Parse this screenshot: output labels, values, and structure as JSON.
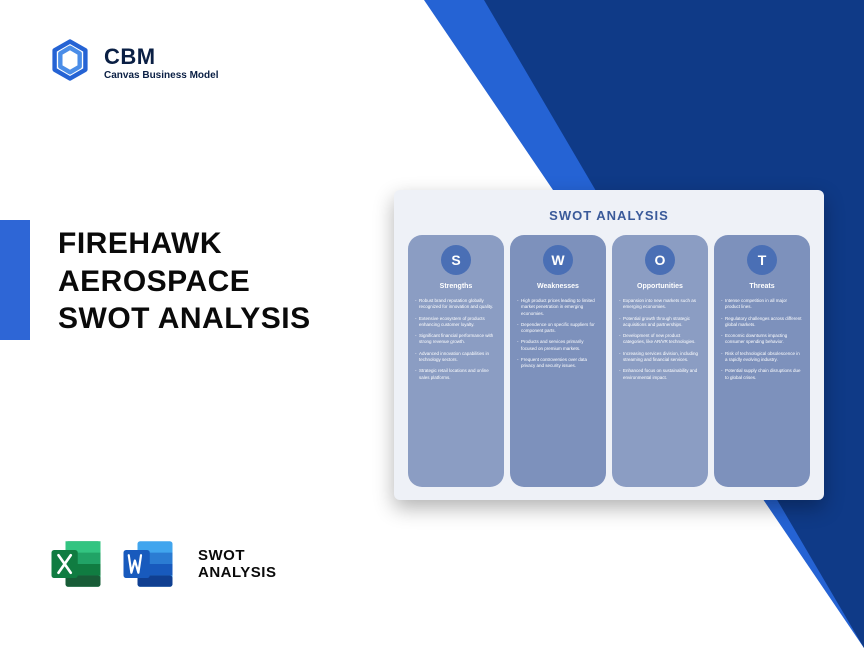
{
  "colors": {
    "bg_triangle_light": "#2563d4",
    "bg_triangle_dark": "#0f3a87",
    "side_bar": "#2e66d6",
    "panel_bg": "#eef1f7",
    "col_bg": "#8b9dc3",
    "col_bg_alt": "#7d91bc",
    "circle_bg": "#4a6fb5",
    "excel_dark": "#107c41",
    "excel_light": "#21a366",
    "word_dark": "#185abd",
    "word_light": "#41a5ee",
    "text_dark": "#0a1f44"
  },
  "logo": {
    "title": "CBM",
    "subtitle": "Canvas Business Model"
  },
  "title": {
    "line1": "FIREHAWK",
    "line2": "AEROSPACE",
    "line3": "SWOT ANALYSIS"
  },
  "footer": {
    "line1": "SWOT",
    "line2": "ANALYSIS"
  },
  "swot": {
    "title": "SWOT ANALYSIS",
    "columns": [
      {
        "letter": "S",
        "heading": "Strengths",
        "items": [
          "Robust brand reputation globally recognized for innovation and quality.",
          "Extensive ecosystem of products enhancing customer loyalty.",
          "Significant financial performance with strong revenue growth.",
          "Advanced innovation capabilities in technology sectors.",
          "Strategic retail locations and online sales platforms."
        ]
      },
      {
        "letter": "W",
        "heading": "Weaknesses",
        "items": [
          "High product prices leading to limited market penetration in emerging economies.",
          "Dependence on specific suppliers for component parts.",
          "Products and services primarily focused on premium markets.",
          "Frequent controversies over data privacy and security issues."
        ]
      },
      {
        "letter": "O",
        "heading": "Opportunities",
        "items": [
          "Expansion into new markets such as emerging economies.",
          "Potential growth through strategic acquisitions and partnerships.",
          "Development of new product categories, like AR/VR technologies.",
          "Increasing services division, including streaming and financial services.",
          "Enhanced focus on sustainability and environmental impact."
        ]
      },
      {
        "letter": "T",
        "heading": "Threats",
        "items": [
          "Intense competition in all major product lines.",
          "Regulatory challenges across different global markets.",
          "Economic downturns impacting consumer spending behavior.",
          "Risk of technological obsolescence in a rapidly evolving industry.",
          "Potential supply chain disruptions due to global crises."
        ]
      }
    ]
  }
}
